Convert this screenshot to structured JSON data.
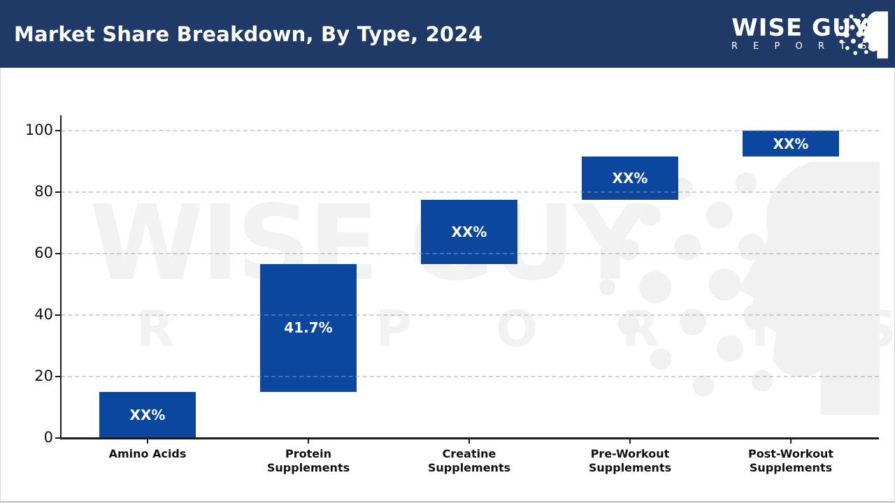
{
  "header": {
    "title": "Market Share Breakdown, By Type, 2024",
    "background_color": "#203a68",
    "logo": {
      "line1": "WISE GUY",
      "line2": "R E P O R T S"
    }
  },
  "watermark": {
    "line1": "WISE GUY",
    "line2": "R E P O R T S"
  },
  "chart_data": {
    "type": "bar",
    "subtype": "waterfall",
    "title": "Market Share Breakdown, By Type, 2024",
    "ylabel": "",
    "xlabel": "",
    "ylim": [
      0,
      105
    ],
    "yticks": [
      0,
      20,
      40,
      60,
      80,
      100
    ],
    "grid": "horizontal dashed",
    "bar_color": "#0b479e",
    "bar_label_color": "#ffffff",
    "categories": [
      "Amino Acids",
      "Protein Supplements",
      "Creatine Supplements",
      "Pre-Workout Supplements",
      "Post-Workout Supplements"
    ],
    "segments": [
      {
        "category": "Amino Acids",
        "start": 0,
        "end": 15,
        "label": "XX%"
      },
      {
        "category": "Protein Supplements",
        "start": 15,
        "end": 56.7,
        "label": "41.7%"
      },
      {
        "category": "Creatine Supplements",
        "start": 56.7,
        "end": 77.5,
        "label": "XX%"
      },
      {
        "category": "Pre-Workout Supplements",
        "start": 77.5,
        "end": 91.5,
        "label": "XX%"
      },
      {
        "category": "Post-Workout Supplements",
        "start": 91.5,
        "end": 100,
        "label": "XX%"
      }
    ]
  }
}
